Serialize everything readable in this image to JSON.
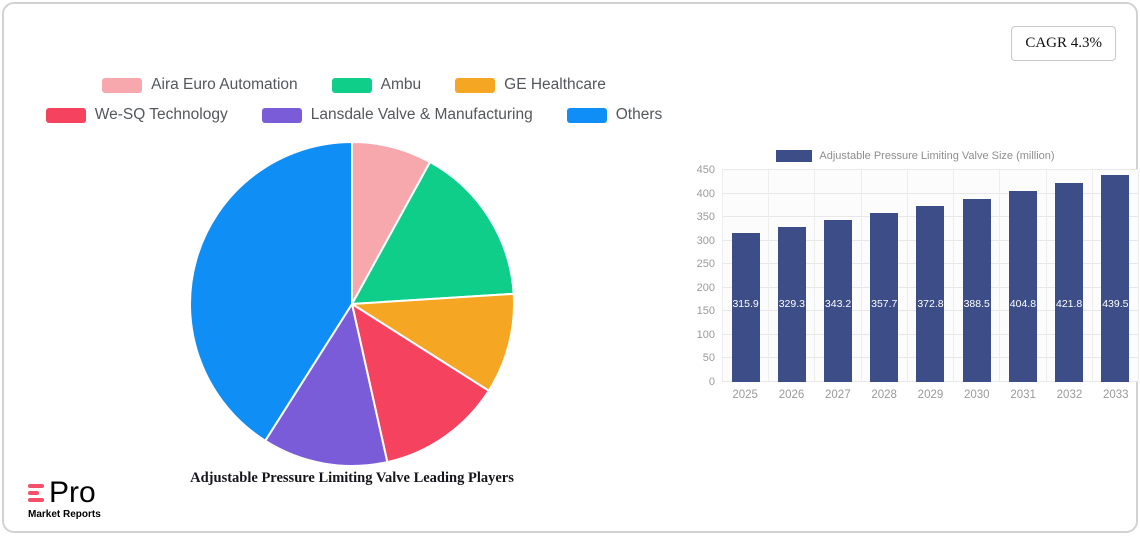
{
  "cagr_badge": "CAGR 4.3%",
  "legend": [
    {
      "label": "Aira Euro Automation",
      "color": "#f7a8ad"
    },
    {
      "label": "Ambu",
      "color": "#0fce8a"
    },
    {
      "label": "GE Healthcare",
      "color": "#f5a623"
    },
    {
      "label": "We-SQ Technology",
      "color": "#f5425f"
    },
    {
      "label": "Lansdale Valve & Manufacturing",
      "color": "#7a5cd8"
    },
    {
      "label": "Others",
      "color": "#0f8ef5"
    }
  ],
  "chart_data": [
    {
      "type": "pie",
      "title": "Adjustable Pressure Limiting Valve Leading Players",
      "labels": [
        "Aira Euro Automation",
        "Ambu",
        "GE Healthcare",
        "We-SQ Technology",
        "Lansdale Valve & Manufacturing",
        "Others"
      ],
      "values": [
        8,
        16,
        10,
        12.5,
        12.5,
        41
      ],
      "values_note": "percent, estimated from slice angles",
      "colors": [
        "#f7a8ad",
        "#0fce8a",
        "#f5a623",
        "#f5425f",
        "#7a5cd8",
        "#0f8ef5"
      ],
      "start_angle_deg": 0,
      "direction": "clockwise",
      "legend_position": "top"
    },
    {
      "type": "bar",
      "legend_label": "Adjustable Pressure Limiting Valve Size (million)",
      "categories": [
        "2025",
        "2026",
        "2027",
        "2028",
        "2029",
        "2030",
        "2031",
        "2032",
        "2033"
      ],
      "values": [
        315.9,
        329.3,
        343.2,
        357.7,
        372.8,
        388.5,
        404.8,
        421.8,
        439.5
      ],
      "bar_color": "#3d4d87",
      "ylabel": "",
      "xlabel": "",
      "ylim": [
        0,
        450
      ],
      "ytick_step": 50,
      "grid": true,
      "value_labels": "inside bars, white"
    }
  ],
  "logo": {
    "title": "Pro",
    "subtitle": "Market Reports"
  }
}
